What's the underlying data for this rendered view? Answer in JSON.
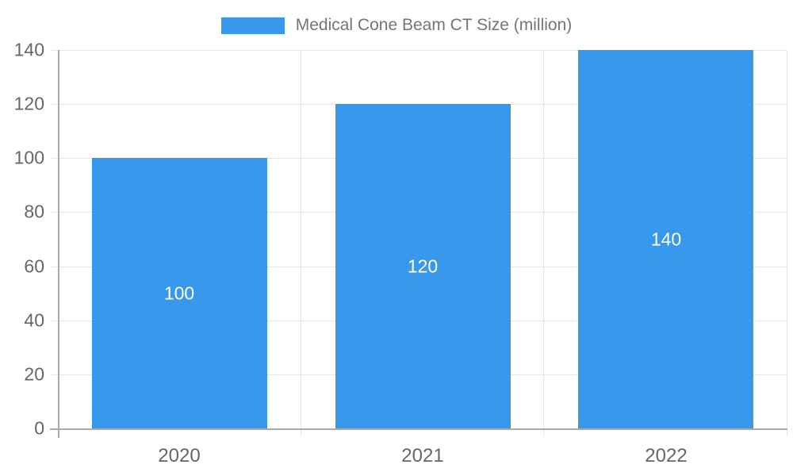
{
  "legend": {
    "label": "Medical Cone Beam CT Size (million)",
    "swatch_color": "#3898EC"
  },
  "chart_data": {
    "type": "bar",
    "title": "Medical Cone Beam CT Size (million)",
    "categories": [
      "2020",
      "2021",
      "2022"
    ],
    "values": [
      100,
      120,
      140
    ],
    "bar_value_labels": [
      "100",
      "120",
      "140"
    ],
    "xlabel": "",
    "ylabel": "",
    "ylim": [
      0,
      140
    ],
    "ytick_step": 20,
    "yticks": [
      0,
      20,
      40,
      60,
      80,
      100,
      120,
      140
    ],
    "grid": true,
    "legend_position": "top",
    "colors": {
      "bar": "#3898EC",
      "gridline": "#e5e5e5",
      "axis_line": "#ababab",
      "tick_label": "#666666",
      "legend_text": "#757575",
      "bar_label": "#ffffff",
      "background": "#ffffff"
    }
  }
}
